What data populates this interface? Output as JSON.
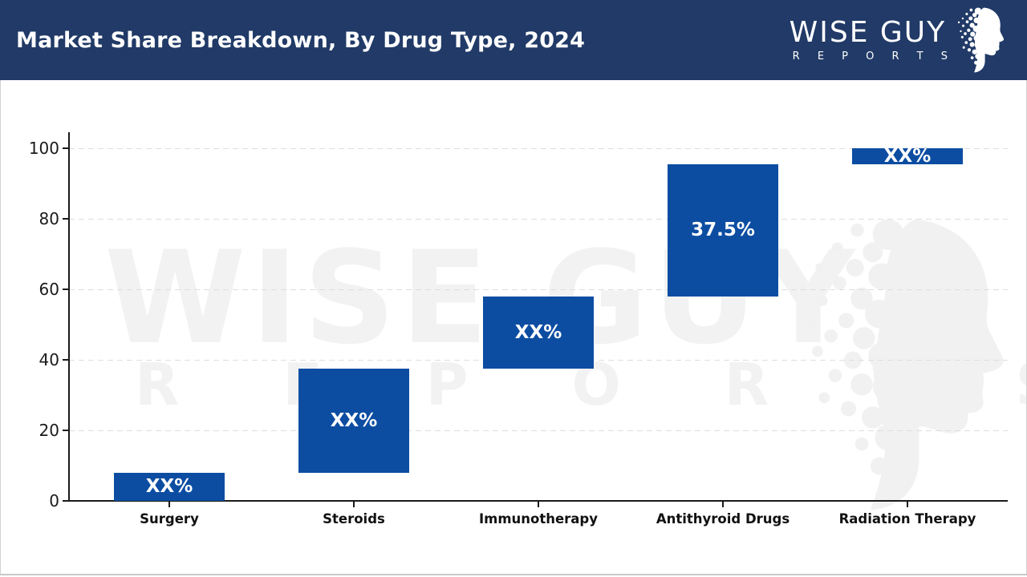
{
  "header": {
    "title": "Market Share Breakdown, By Drug Type, 2024",
    "logo_main": "WISE GUY",
    "logo_sub": "R E P O R T S"
  },
  "watermark": {
    "main": "WISE GUY",
    "sub": "R E P O R T S"
  },
  "colors": {
    "header_bg": "#213A67",
    "bar": "#0C4DA2",
    "bar_label": "#ffffff",
    "grid": "#dedede",
    "axis": "#1a1a1a"
  },
  "chart_data": {
    "type": "bar",
    "subtype": "waterfall",
    "title": "Market Share Breakdown, By Drug Type, 2024",
    "categories": [
      "Surgery",
      "Steroids",
      "Immunotherapy",
      "Antithyroid Drugs",
      "Radiation Therapy"
    ],
    "bars": [
      {
        "category": "Surgery",
        "start": 0,
        "end": 8,
        "label": "XX%"
      },
      {
        "category": "Steroids",
        "start": 8,
        "end": 37.5,
        "label": "XX%"
      },
      {
        "category": "Immunotherapy",
        "start": 37.5,
        "end": 58,
        "label": "XX%"
      },
      {
        "category": "Antithyroid Drugs",
        "start": 58,
        "end": 95.5,
        "label": "37.5%"
      },
      {
        "category": "Radiation Therapy",
        "start": 95.5,
        "end": 100,
        "label": "XX%"
      }
    ],
    "xlabel": "",
    "ylabel": "",
    "y_ticks": [
      0,
      20,
      40,
      60,
      80,
      100
    ],
    "ylim": [
      0,
      104.5
    ],
    "grid": "horizontal dashed",
    "legend": "none"
  }
}
